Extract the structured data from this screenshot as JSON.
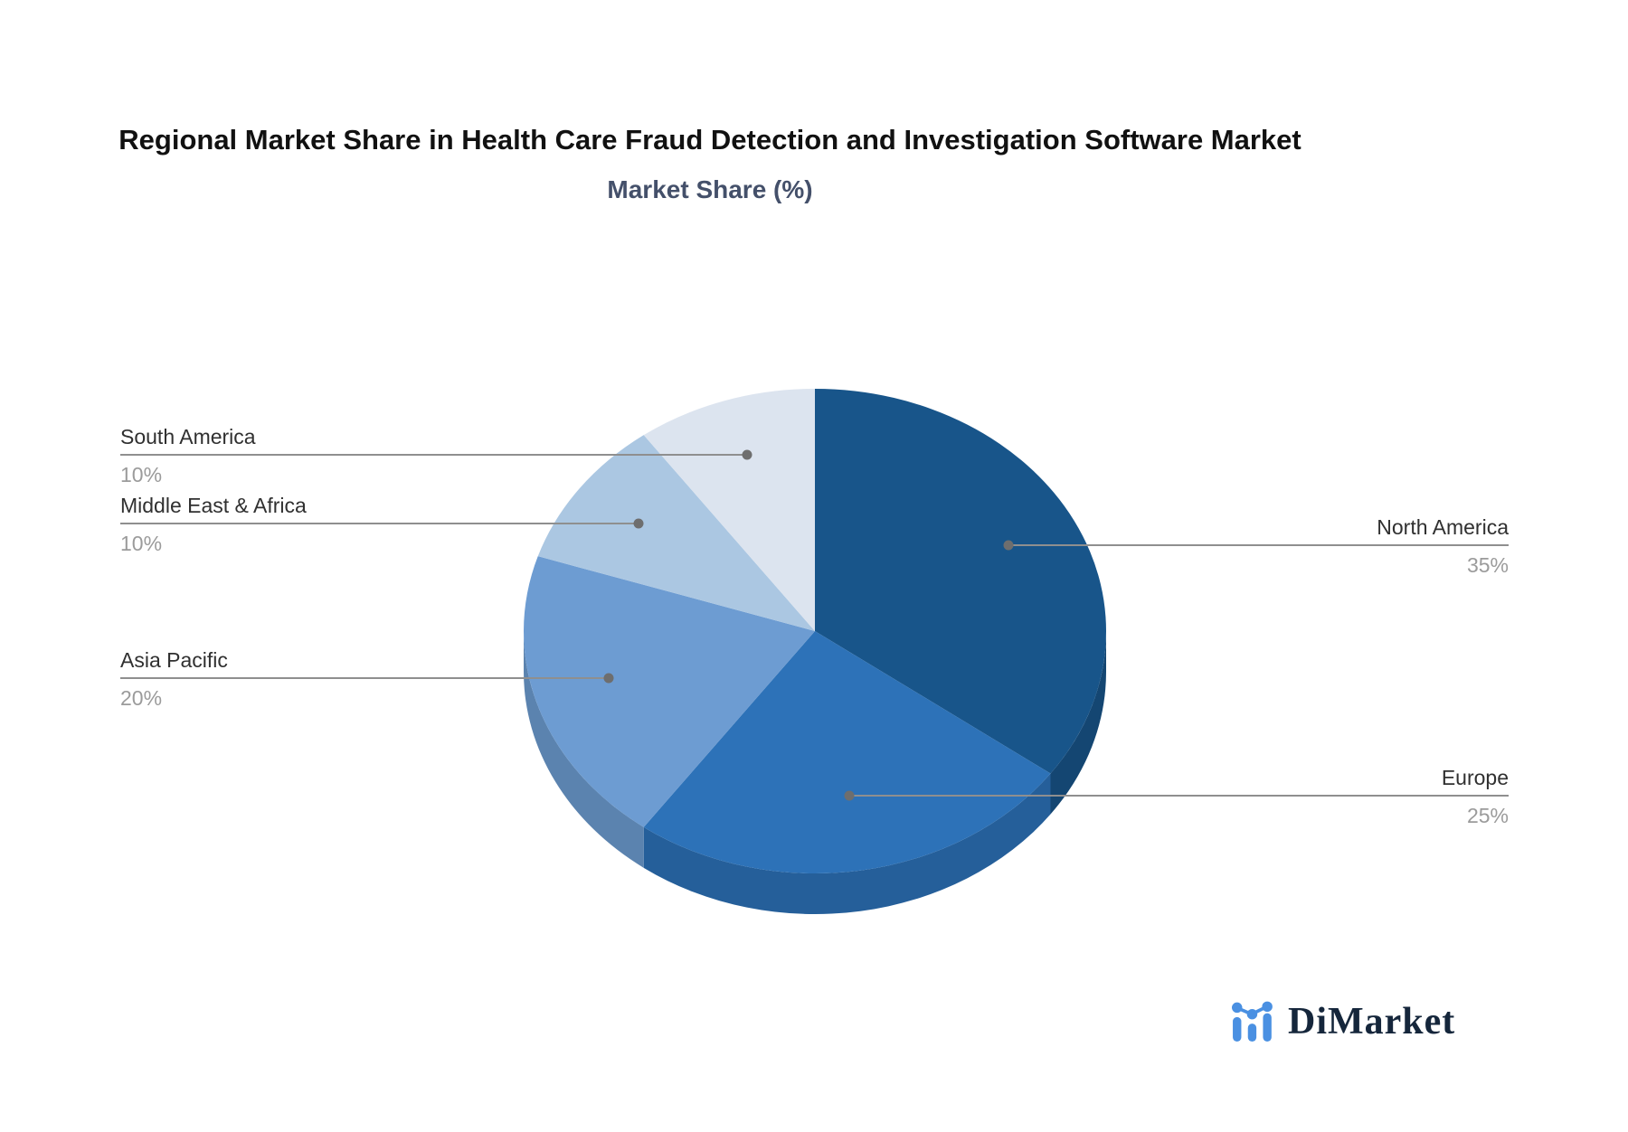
{
  "title": {
    "text": "Regional Market Share in Health Care Fraud Detection and Investigation Software Market",
    "subtitle": "Market Share (%)"
  },
  "chart_data": {
    "type": "pie",
    "title": "Regional Market Share in Health Care Fraud Detection and Investigation Software Market",
    "subtitle": "Market Share (%)",
    "unit": "%",
    "legend": "none",
    "style": "3d-pie, starts at 12 o'clock, clockwise",
    "slices": [
      {
        "name": "North America",
        "value": 35,
        "value_label": "35%",
        "color": "#18558A",
        "wall": "#144672"
      },
      {
        "name": "Europe",
        "value": 25,
        "value_label": "25%",
        "color": "#2D72B8",
        "wall": "#255F9A"
      },
      {
        "name": "Asia Pacific",
        "value": 20,
        "value_label": "20%",
        "color": "#6D9CD2",
        "wall": "#5B83AF"
      },
      {
        "name": "Middle East & Africa",
        "value": 10,
        "value_label": "10%",
        "color": "#ABC7E2",
        "wall": "#8FA9C4"
      },
      {
        "name": "South America",
        "value": 10,
        "value_label": "10%",
        "color": "#DCE4EF",
        "wall": "#BCC7D6"
      }
    ],
    "label_style": {
      "name_color": "#303030",
      "value_color": "#9B9B9B",
      "line_color": "#8F8F8F",
      "dot_color": "#6E6E6E"
    }
  },
  "logo": {
    "text": "DiMarket",
    "accent": "#4A90E2",
    "text_color": "#15263B"
  }
}
